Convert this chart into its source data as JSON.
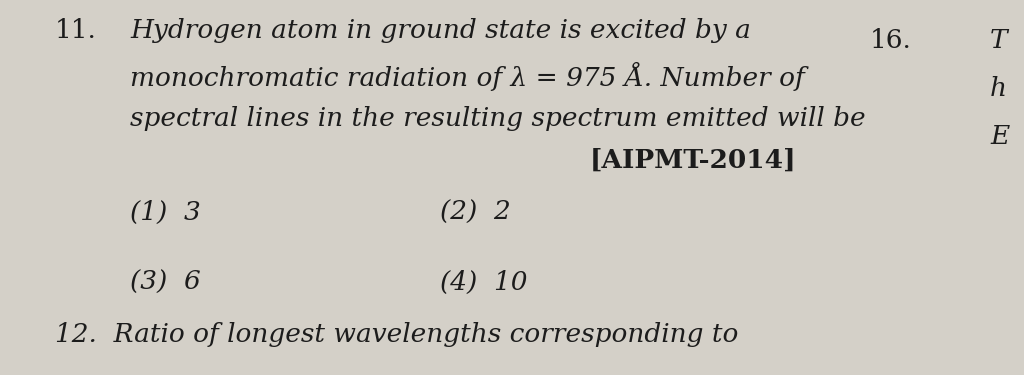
{
  "background_color": "#d4d0c8",
  "question_number": "11.",
  "question_text_line1": "Hydrogen atom in ground state is excited by a",
  "question_text_line2": "monochromatic radiation of λ = 975 Å. Number of",
  "question_text_line3": "spectral lines in the resulting spectrum emitted will be",
  "tag": "[AIPMT-2014]",
  "option1": "(1)  3",
  "option2": "(2)  2",
  "option3": "(3)  6",
  "option4": "(4)  10",
  "q12_text": "12.  Ratio of longest wavelengths corresponding to",
  "side_number": "16.",
  "side_letters": [
    "T",
    "h",
    "E"
  ],
  "text_color": "#1c1c1c",
  "font_size_question": 19,
  "font_size_options": 19,
  "font_size_tag": 19,
  "font_size_q12": 19,
  "font_size_side": 19
}
